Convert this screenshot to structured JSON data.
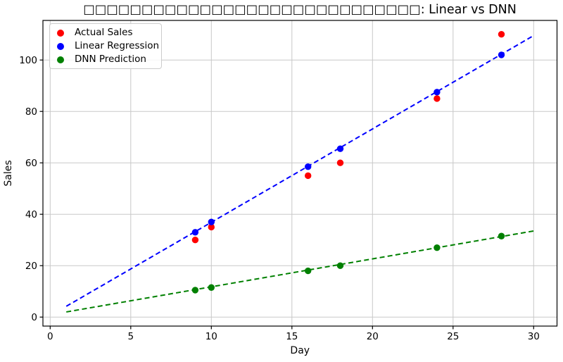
{
  "chart_data": {
    "type": "scatter",
    "title_prefix_boxes": "□□□□□□□□□□□□□□□□□□□□□□□□□□□□□",
    "title_suffix": ": Linear vs DNN",
    "xlabel": "Day",
    "ylabel": "Sales",
    "x": [
      9,
      10,
      16,
      18,
      24,
      28
    ],
    "series": [
      {
        "name": "Actual Sales",
        "color": "#ff0000",
        "marker": "circle",
        "values": [
          30,
          35,
          55,
          60,
          85,
          110
        ]
      },
      {
        "name": "Linear Regression",
        "color": "#0000ff",
        "marker": "circle",
        "values": [
          33,
          37,
          58.5,
          65.5,
          87.5,
          102
        ],
        "line": {
          "style": "dashed",
          "x": [
            1,
            30
          ],
          "y": [
            4.2,
            109.5
          ]
        }
      },
      {
        "name": "DNN Prediction",
        "color": "#008000",
        "marker": "circle",
        "values": [
          10.5,
          11.5,
          18,
          20,
          27,
          31.5
        ],
        "line": {
          "style": "dashed",
          "x": [
            1,
            30
          ],
          "y": [
            2,
            33.5
          ]
        }
      }
    ],
    "xticks": [
      0,
      5,
      10,
      15,
      20,
      25,
      30
    ],
    "yticks": [
      0,
      20,
      40,
      60,
      80,
      100
    ],
    "xlim": [
      -0.45,
      31.45
    ],
    "ylim": [
      -3.5,
      115.4
    ],
    "grid": true,
    "grid_color": "#c8c8c8",
    "legend_position": "upper left"
  }
}
